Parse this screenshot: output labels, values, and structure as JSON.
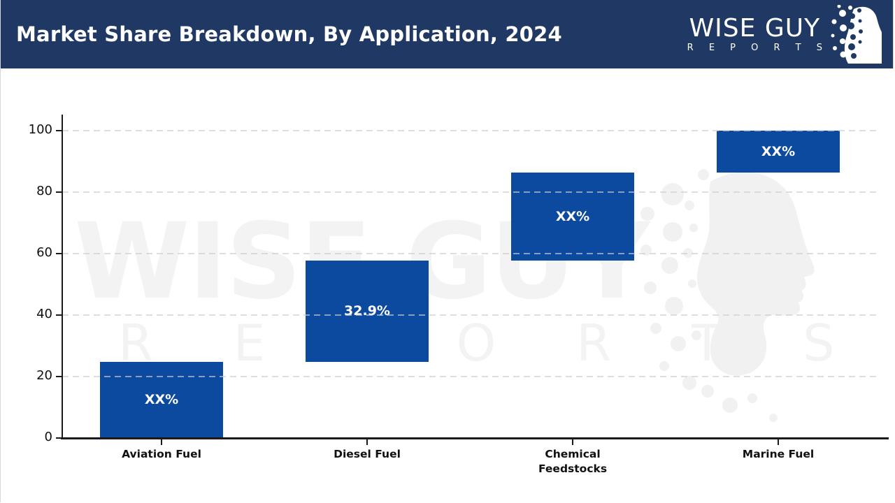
{
  "header": {
    "title": "Market Share Breakdown, By Application, 2024",
    "logo": {
      "line1": "WISE GUY",
      "line2": "R E P O R T S"
    }
  },
  "watermark": {
    "line1": "WISE GUY",
    "line2": "R E P O R T S"
  },
  "colors": {
    "header_bg": "#203864",
    "bar": "#0b4a9e",
    "axis": "#1a1a1a",
    "grid": "#dcdcdc",
    "watermark": "#f3f3f3",
    "bar_label": "#ffffff"
  },
  "chart_data": {
    "type": "bar",
    "subtype": "floating-waterfall",
    "title": "Market Share Breakdown, By Application, 2024",
    "categories": [
      "Aviation Fuel",
      "Diesel Fuel",
      "Chemical Feedstocks",
      "Marine Fuel"
    ],
    "tick_labels": [
      "Aviation Fuel",
      "Diesel Fuel",
      "Chemical\nFeedstocks",
      "Marine Fuel"
    ],
    "segments": [
      {
        "category": "Aviation Fuel",
        "start": 0,
        "end": 24.8,
        "label": "XX%"
      },
      {
        "category": "Diesel Fuel",
        "start": 24.8,
        "end": 57.7,
        "label": "32.9%"
      },
      {
        "category": "Chemical Feedstocks",
        "start": 57.7,
        "end": 86.4,
        "label": "XX%"
      },
      {
        "category": "Marine Fuel",
        "start": 86.4,
        "end": 100,
        "label": "XX%"
      }
    ],
    "segment_sizes": [
      24.8,
      32.9,
      28.7,
      13.6
    ],
    "ylabel": "",
    "xlabel": "",
    "yticks": [
      0,
      20,
      40,
      60,
      80,
      100
    ],
    "ylim": [
      0,
      105
    ],
    "grid": "horizontal-dashed-over-bars",
    "legend": "none"
  }
}
